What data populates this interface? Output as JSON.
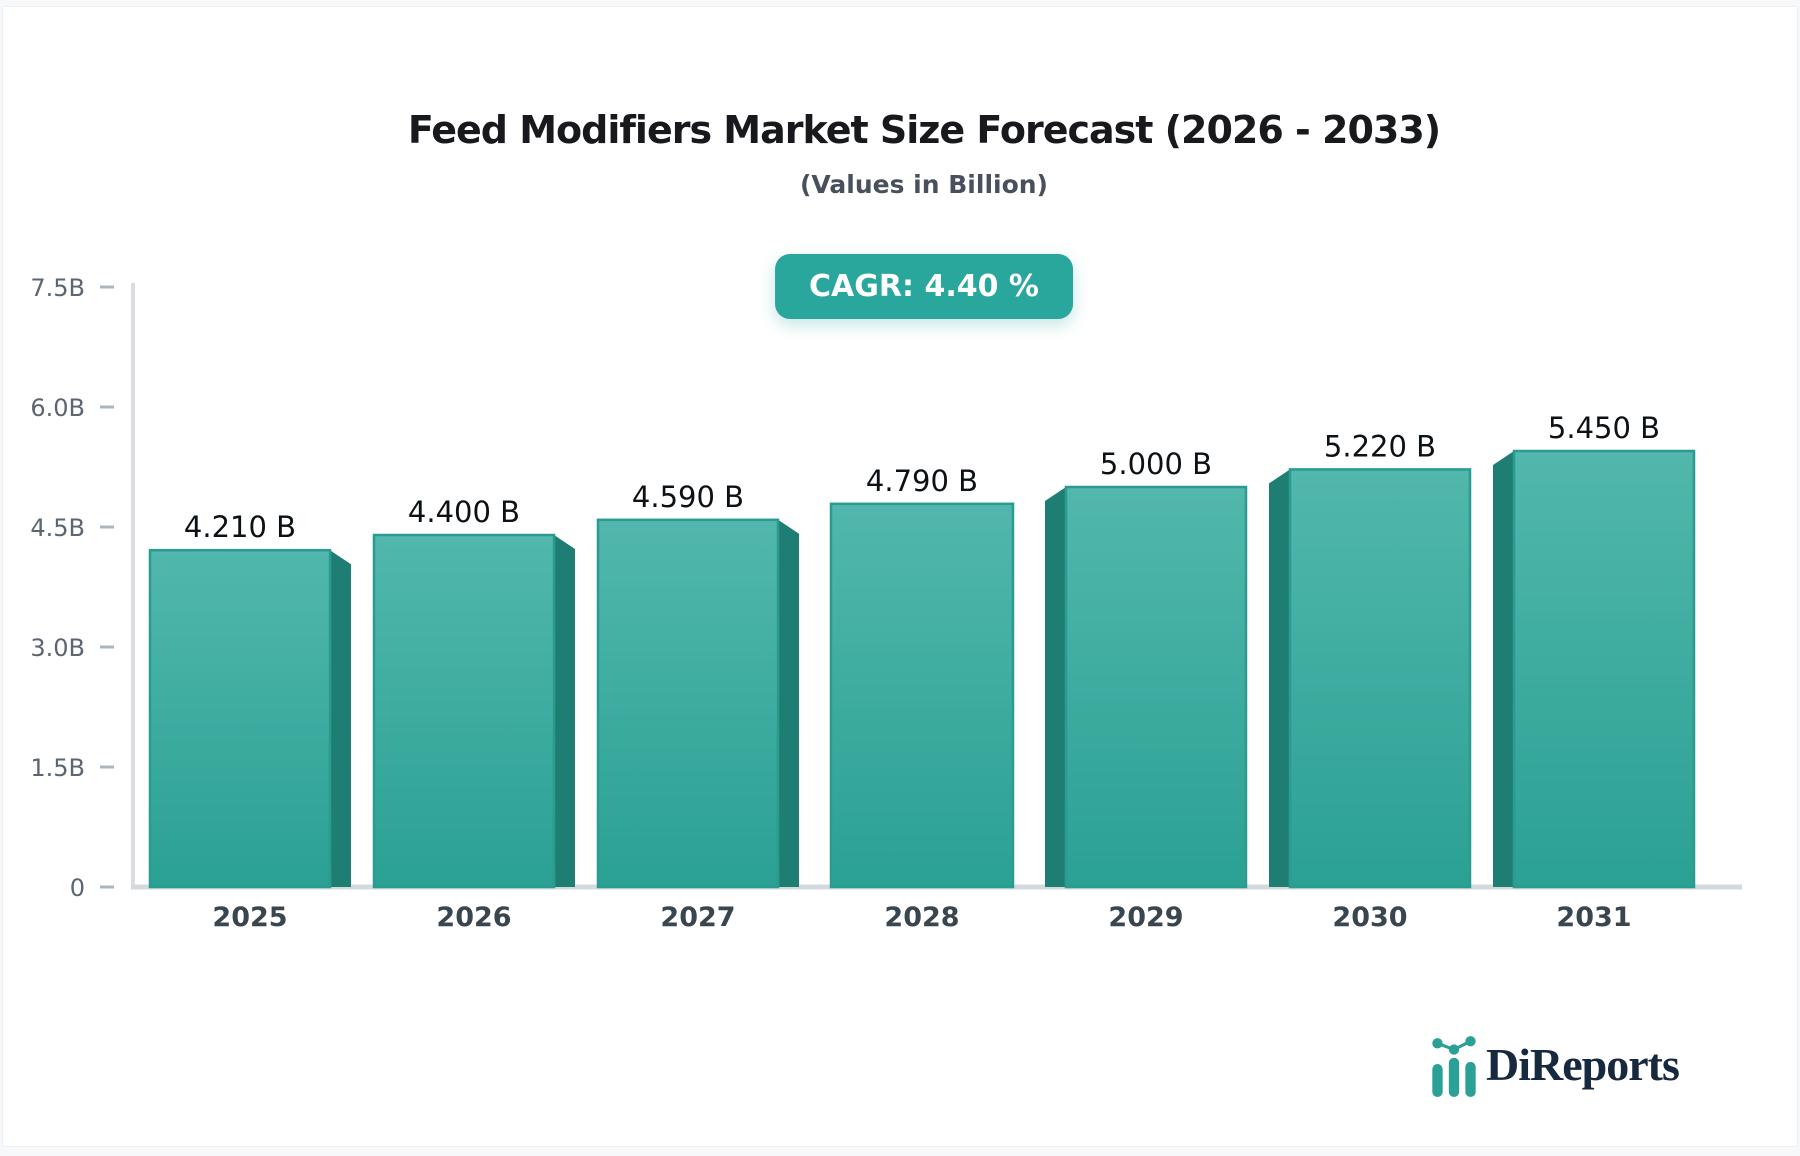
{
  "chart_data": {
    "type": "bar",
    "title": "Feed Modifiers Market Size Forecast (2026 - 2033)",
    "subtitle": "(Values in Billion)",
    "cagr_label": "CAGR: 4.40 %",
    "categories": [
      "2025",
      "2026",
      "2027",
      "2028",
      "2029",
      "2030",
      "2031"
    ],
    "values": [
      4.21,
      4.4,
      4.59,
      4.79,
      5.0,
      5.22,
      5.45
    ],
    "value_labels": [
      "4.210 B",
      "4.400 B",
      "4.590 B",
      "4.790 B",
      "5.000 B",
      "5.220 B",
      "5.450 B"
    ],
    "unit": "Billion",
    "ylim": [
      0,
      7.5
    ],
    "y_tick_values": [
      0,
      1.5,
      3.0,
      4.5,
      6.0,
      7.5
    ],
    "y_tick_labels": [
      "0",
      "1.5B",
      "3.0B",
      "4.5B",
      "6.0B",
      "7.5B"
    ],
    "grid": false,
    "legend": false,
    "bar_style": "3d-beveled"
  },
  "branding": {
    "logo_text": "DiReports",
    "logo_icon": "mini-bar-chart-icon"
  },
  "colors": {
    "bar_face_top": "#52b7ad",
    "bar_face_bottom": "#2aa193",
    "bar_face_edge": "#2a9b90",
    "bar_side": "#1f7e74",
    "badge_bg": "#2aa79c",
    "badge_text": "#ffffff",
    "axis_line": "#d9dde2",
    "baseline": "#d4d9dd",
    "tick_dash": "#aeb6bd",
    "tick_label": "#5b6672",
    "year_label": "#39454f",
    "value_label": "#0c1116",
    "title_text": "#17191c",
    "subtitle_text": "#47505c",
    "logo_navy": "#17293e",
    "logo_teal": "#2aa096"
  }
}
